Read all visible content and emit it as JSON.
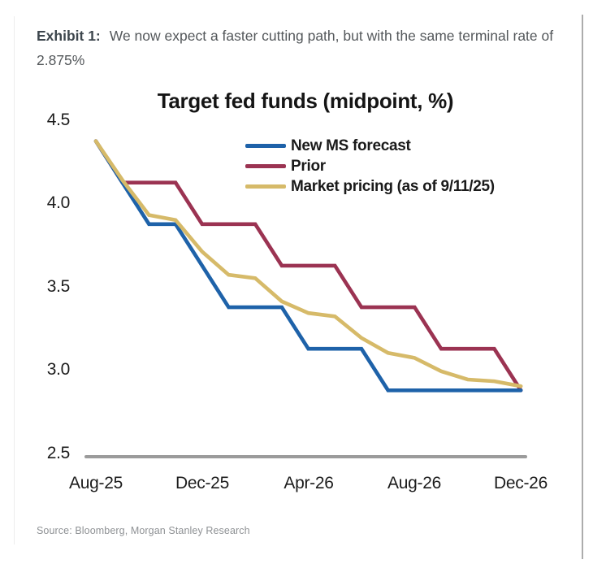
{
  "header": {
    "exhibit_label": "Exhibit 1:",
    "exhibit_text": "We now expect a faster cutting path, but with the same terminal rate of 2.875%"
  },
  "footer": {
    "source": "Source: Bloomberg, Morgan Stanley Research"
  },
  "chart_data": {
    "type": "line",
    "title": "Target fed funds (midpoint, %)",
    "x": [
      "Aug-25",
      "Sep-25",
      "Oct-25",
      "Nov-25",
      "Dec-25",
      "Jan-26",
      "Feb-26",
      "Mar-26",
      "Apr-26",
      "May-26",
      "Jun-26",
      "Jul-26",
      "Aug-26",
      "Sep-26",
      "Oct-26",
      "Nov-26",
      "Dec-26"
    ],
    "xtick_labels": [
      "Aug-25",
      "Dec-25",
      "Apr-26",
      "Aug-26",
      "Dec-26"
    ],
    "ytick_labels": [
      "4.5",
      "4.0",
      "3.5",
      "3.0",
      "2.5"
    ],
    "ylim": [
      2.5,
      4.5
    ],
    "grid": false,
    "legend_position": "top-center, below title",
    "series": [
      {
        "name": "New MS forecast",
        "color": "#1e62a9",
        "values": [
          4.375,
          4.125,
          3.875,
          3.875,
          3.625,
          3.375,
          3.375,
          3.375,
          3.125,
          3.125,
          3.125,
          2.875,
          2.875,
          2.875,
          2.875,
          2.875,
          2.875
        ]
      },
      {
        "name": "Prior",
        "color": "#9b3352",
        "values": [
          4.375,
          4.125,
          4.125,
          4.125,
          3.875,
          3.875,
          3.875,
          3.625,
          3.625,
          3.625,
          3.375,
          3.375,
          3.375,
          3.125,
          3.125,
          3.125,
          2.875
        ]
      },
      {
        "name": "Market pricing (as of 9/11/25)",
        "color": "#d6ba69",
        "values": [
          4.375,
          4.14,
          3.93,
          3.9,
          3.71,
          3.57,
          3.55,
          3.41,
          3.34,
          3.32,
          3.19,
          3.1,
          3.07,
          2.99,
          2.94,
          2.93,
          2.9
        ]
      }
    ],
    "axis_line_color": "#9b9b9b"
  }
}
